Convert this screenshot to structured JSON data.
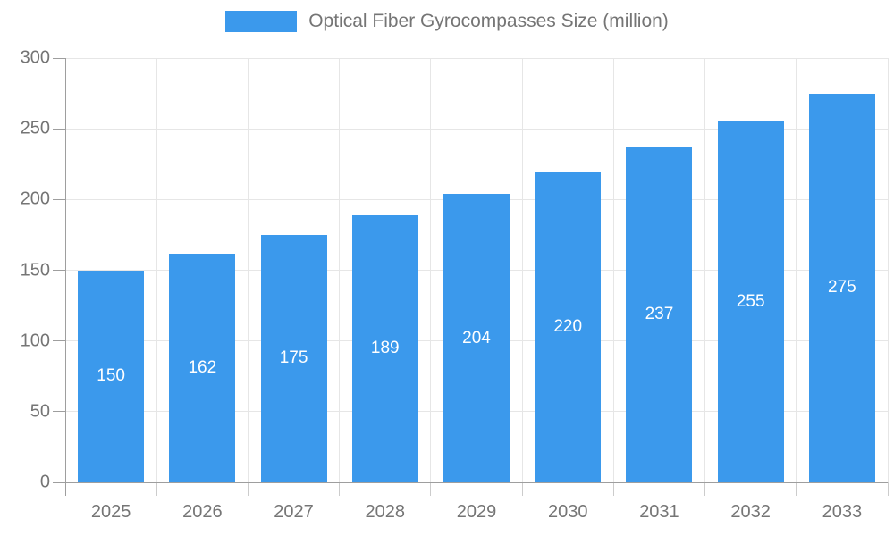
{
  "legend": {
    "label": "Optical Fiber Gyrocompasses Size (million)"
  },
  "chart_data": {
    "type": "bar",
    "title": "Optical Fiber Gyrocompasses Size (million)",
    "categories": [
      "2025",
      "2026",
      "2027",
      "2028",
      "2029",
      "2030",
      "2031",
      "2032",
      "2033"
    ],
    "values": [
      150,
      162,
      175,
      189,
      204,
      220,
      237,
      255,
      275
    ],
    "xlabel": "",
    "ylabel": "",
    "ylim": [
      0,
      300
    ],
    "ytick_step": 50,
    "yticks": [
      0,
      50,
      100,
      150,
      200,
      250,
      300
    ],
    "grid": true,
    "legend_position": "top",
    "bar_label_color": "#ffffff",
    "colors": {
      "bar": "#3b99ec",
      "axis": "#9e9e9e",
      "grid": "#e6e6e6",
      "text": "#757575",
      "bar_label": "#ffffff"
    }
  }
}
